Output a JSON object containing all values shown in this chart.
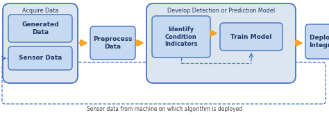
{
  "bg_color": "#ffffff",
  "box_fill": "#c5d9f1",
  "box_edge": "#4472c4",
  "group_fill": "#dce6f1",
  "group_edge": "#4472c4",
  "dashed_edge": "#4472c4",
  "arrow_color": "#f5a623",
  "text_color": "#1f3864",
  "bottom_text": "Sensor data from machine on which algorithm is deployed",
  "acquire_label": "Acquire Data",
  "gen_data_label": "Generated\nData",
  "sensor_data_label": "Sensor Data",
  "preprocess_label": "Preprocess\nData",
  "develop_label": "Develop Detection or Prediction Model",
  "identify_label": "Identify\nCondition\nIndicators",
  "train_label": "Train Model",
  "deploy_label": "Deploy &\nIntegrate",
  "figw": 4.74,
  "figh": 1.66,
  "dpi": 100
}
